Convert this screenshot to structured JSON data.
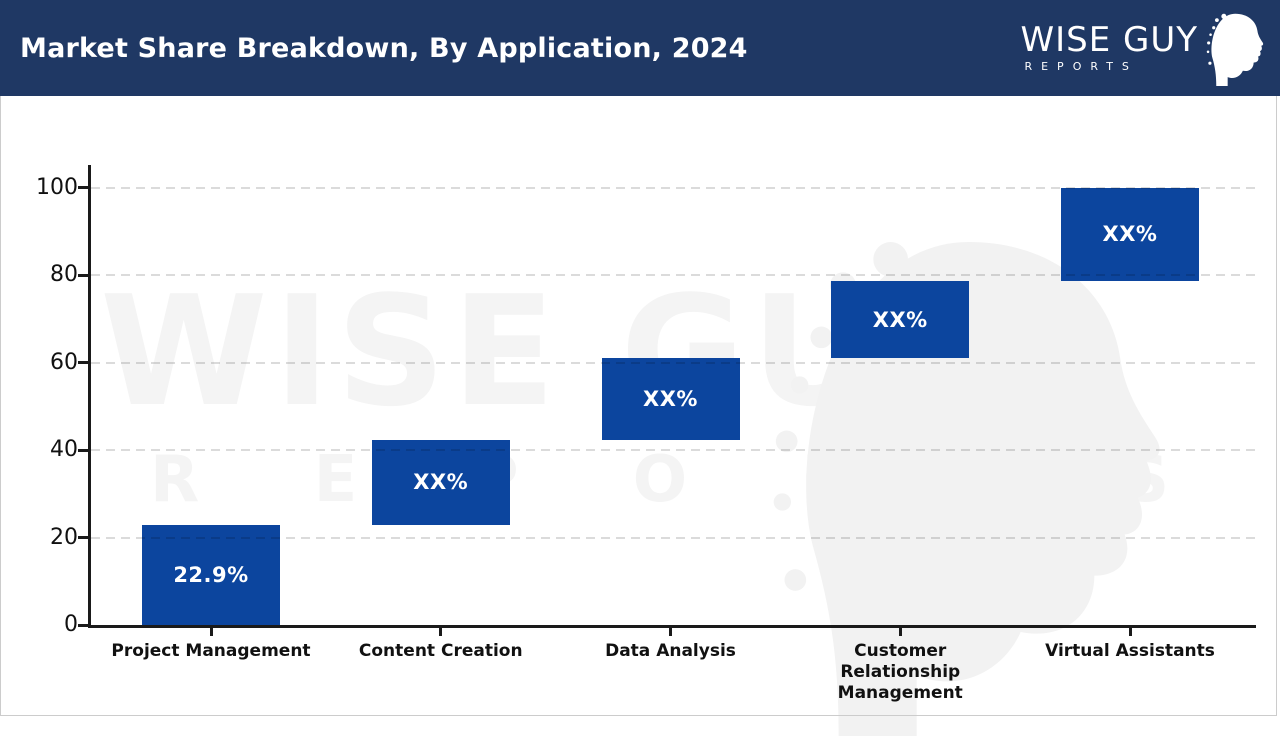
{
  "header": {
    "title": "Market Share Breakdown, By Application, 2024",
    "logo": {
      "line1": "WISE GUY",
      "line2": "REPORTS"
    }
  },
  "watermark": {
    "line1": "WISE GUY",
    "line2": "R E P O R T S"
  },
  "chart_data": {
    "type": "bar",
    "variant": "floating-segment (waterfall-style market share)",
    "title": "Market Share Breakdown, By Application, 2024",
    "categories": [
      "Project Management",
      "Content Creation",
      "Data Analysis",
      "Customer\nRelationship\nManagement",
      "Virtual Assistants"
    ],
    "bars": [
      {
        "category": "Project Management",
        "start": 0,
        "end": 22.9,
        "label": "22.9%"
      },
      {
        "category": "Content Creation",
        "start": 22.9,
        "end": 42.3,
        "label": "XX%"
      },
      {
        "category": "Data Analysis",
        "start": 42.3,
        "end": 61.0,
        "label": "XX%"
      },
      {
        "category": "Customer Relationship Management",
        "start": 61.0,
        "end": 78.6,
        "label": "XX%"
      },
      {
        "category": "Virtual Assistants",
        "start": 78.6,
        "end": 100.0,
        "label": "XX%"
      }
    ],
    "yticks": [
      0,
      20,
      40,
      60,
      80,
      100
    ],
    "ylim": [
      0,
      105
    ],
    "xlabel": "",
    "ylabel": "",
    "grid": "horizontal dashed",
    "legend": "none",
    "bar_color": "#0c459e",
    "bar_label_color": "#ffffff",
    "header_color": "#1f3864"
  }
}
